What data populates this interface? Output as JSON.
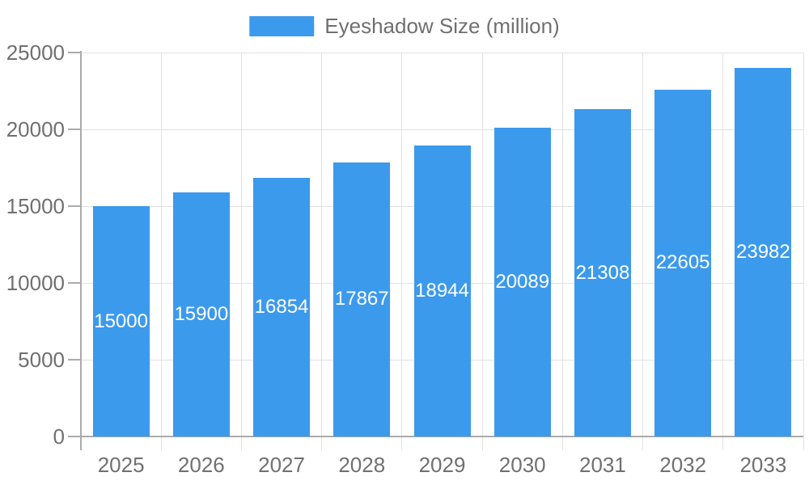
{
  "legend": {
    "label": "Eyeshadow Size (million)"
  },
  "colors": {
    "bar": "#3C9AEC",
    "grid": "#E2E2E2",
    "axis": "#ABABAB",
    "text": "#707070",
    "bar_label": "#FFFFFF",
    "background": "#FFFFFF"
  },
  "chart_data": {
    "type": "bar",
    "title": "",
    "series_name": "Eyeshadow Size (million)",
    "categories": [
      "2025",
      "2026",
      "2027",
      "2028",
      "2029",
      "2030",
      "2031",
      "2032",
      "2033"
    ],
    "values": [
      15000,
      15900,
      16854,
      17867,
      18944,
      20089,
      21308,
      22605,
      23982
    ],
    "xlabel": "",
    "ylabel": "",
    "ylim": [
      0,
      25000
    ],
    "y_ticks": [
      0,
      5000,
      10000,
      15000,
      20000,
      25000
    ],
    "grid": true,
    "legend_position": "top",
    "bar_labels_visible": true,
    "bar_label_position": "center-inside"
  }
}
